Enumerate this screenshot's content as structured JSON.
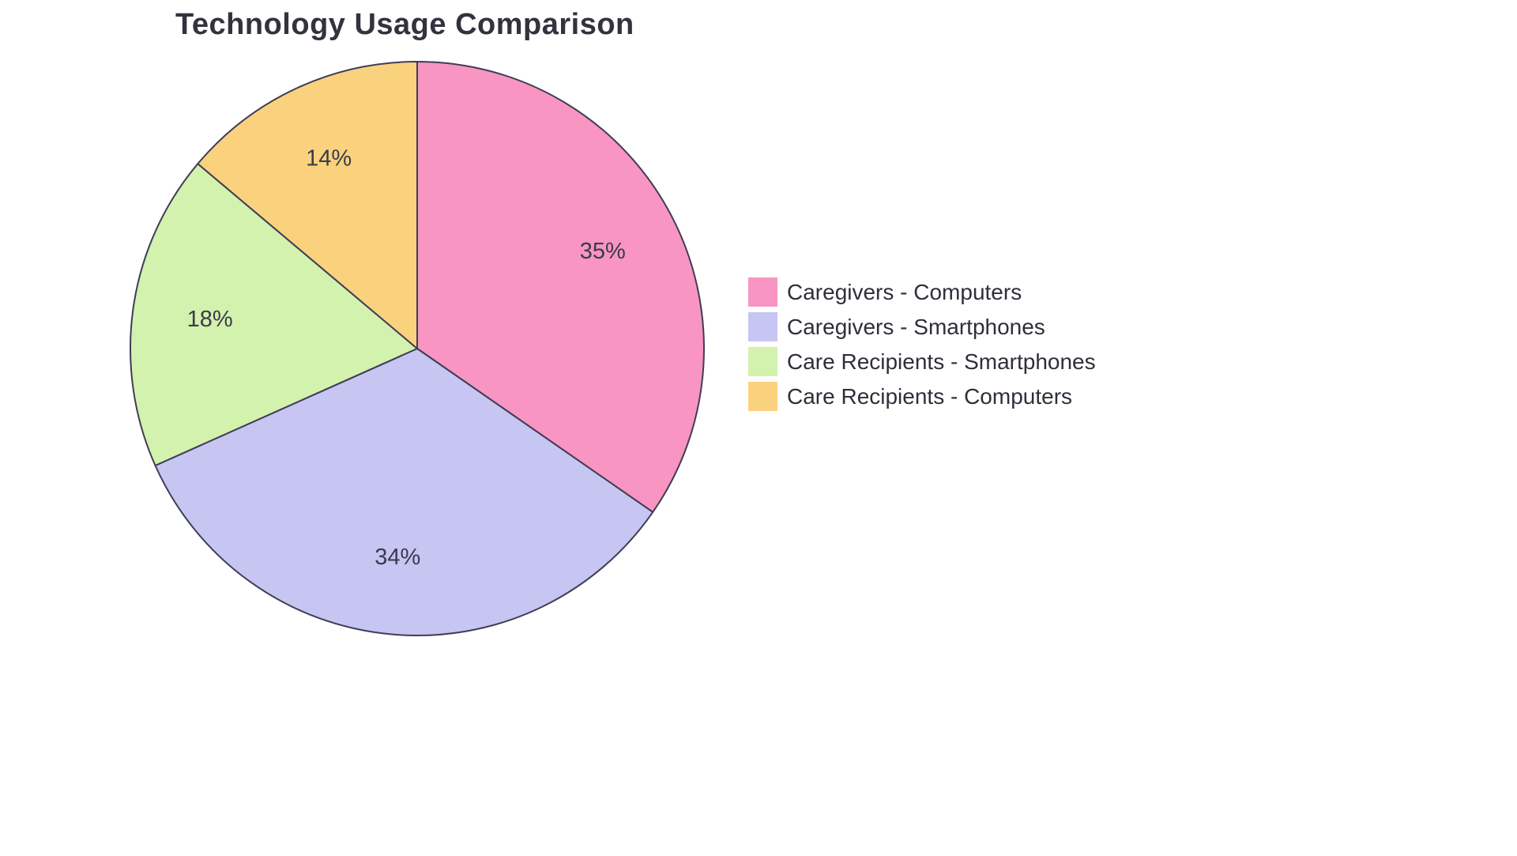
{
  "title": "Technology Usage Comparison",
  "colors": {
    "background": "#ffffff",
    "pie_stroke": "#3f3d56",
    "label_text": "#3b3a4e",
    "title_text": "#33323e"
  },
  "chart_data": {
    "type": "pie",
    "title": "Technology Usage Comparison",
    "start_angle_deg": -90,
    "direction": "clockwise",
    "legend_position": "right",
    "grid": false,
    "slices": [
      {
        "label": "Caregivers - Computers",
        "value": 35,
        "display": "35%",
        "color": "#F895C2"
      },
      {
        "label": "Caregivers - Smartphones",
        "value": 34,
        "display": "34%",
        "color": "#C7C5F1"
      },
      {
        "label": "Care Recipients - Smartphones",
        "value": 18,
        "display": "18%",
        "color": "#D3F2AE"
      },
      {
        "label": "Care Recipients - Computers",
        "value": 14,
        "display": "14%",
        "color": "#FAD27E"
      }
    ]
  }
}
